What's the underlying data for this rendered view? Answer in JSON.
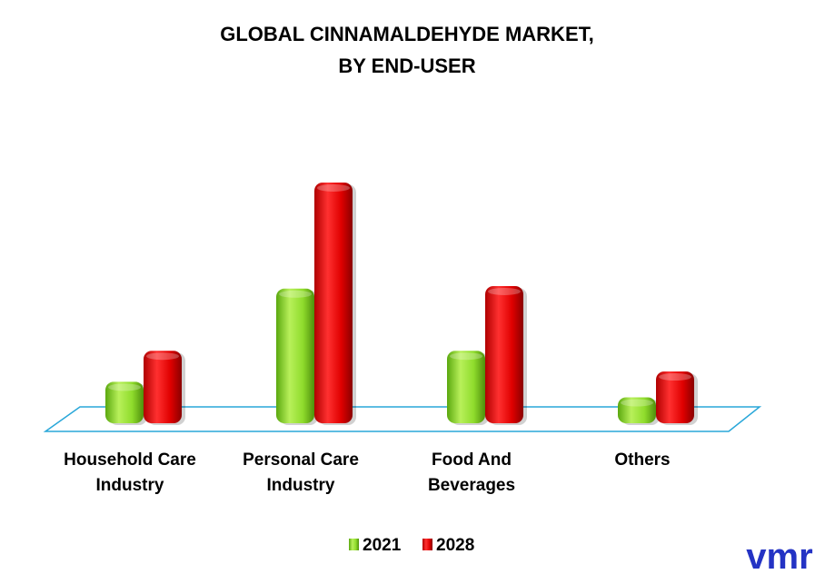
{
  "chart_data": {
    "type": "bar",
    "title_lines": [
      "GLOBAL CINNAMALDEHYDE MARKET,",
      "BY END-USER"
    ],
    "categories": [
      [
        "Household Care",
        "Industry"
      ],
      [
        "Personal Care",
        "Industry"
      ],
      [
        "Food And",
        "Beverages"
      ],
      [
        "Others"
      ]
    ],
    "series": [
      {
        "name": "2021",
        "color": "#7ed321",
        "values": [
          1.6,
          5.2,
          2.8,
          1.0
        ]
      },
      {
        "name": "2028",
        "color": "#e00000",
        "values": [
          2.8,
          9.3,
          5.3,
          2.0
        ]
      }
    ],
    "ylim": [
      0,
      10
    ],
    "grid": false,
    "legend_position": "bottom"
  },
  "brand": {
    "logo": "vmr",
    "logo_color": "#2433c4"
  }
}
